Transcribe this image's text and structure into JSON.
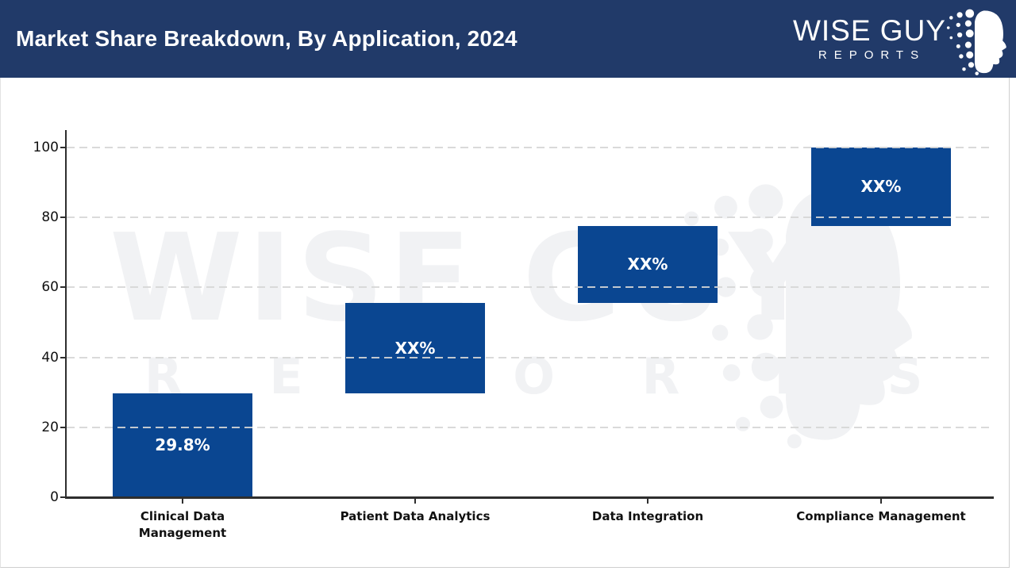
{
  "header": {
    "title": "Market Share Breakdown, By Application, 2024",
    "bg_color": "#213a69",
    "logo": {
      "line1": "WISE GUY",
      "line2": "REPORTS"
    }
  },
  "watermark": {
    "line1": "WISE GUY",
    "line2": "R E P O R T S"
  },
  "chart_data": {
    "type": "bar",
    "subtype": "waterfall-floating-segments",
    "title": "Market Share Breakdown, By Application, 2024",
    "categories": [
      "Clinical Data Management",
      "Patient Data Analytics",
      "Data Integration",
      "Compliance Management"
    ],
    "bars": [
      {
        "category": "Clinical Data Management",
        "start": 0,
        "end": 29.8,
        "value": 29.8,
        "label": "29.8%"
      },
      {
        "category": "Patient Data Analytics",
        "start": 29.8,
        "end": 55.6,
        "value": 25.8,
        "label": "XX%"
      },
      {
        "category": "Data Integration",
        "start": 55.6,
        "end": 77.6,
        "value": 22.0,
        "label": "XX%"
      },
      {
        "category": "Compliance Management",
        "start": 77.6,
        "end": 100,
        "value": 22.4,
        "label": "XX%"
      }
    ],
    "y_ticks": [
      0,
      20,
      40,
      60,
      80,
      100
    ],
    "ylim": [
      0,
      105
    ],
    "xlabel": "",
    "ylabel": "",
    "grid": "horizontal-dashed",
    "legend": "none",
    "bar_color": "#0a4691",
    "bar_label_color": "#ffffff",
    "axis_color": "#2e2e2e"
  }
}
